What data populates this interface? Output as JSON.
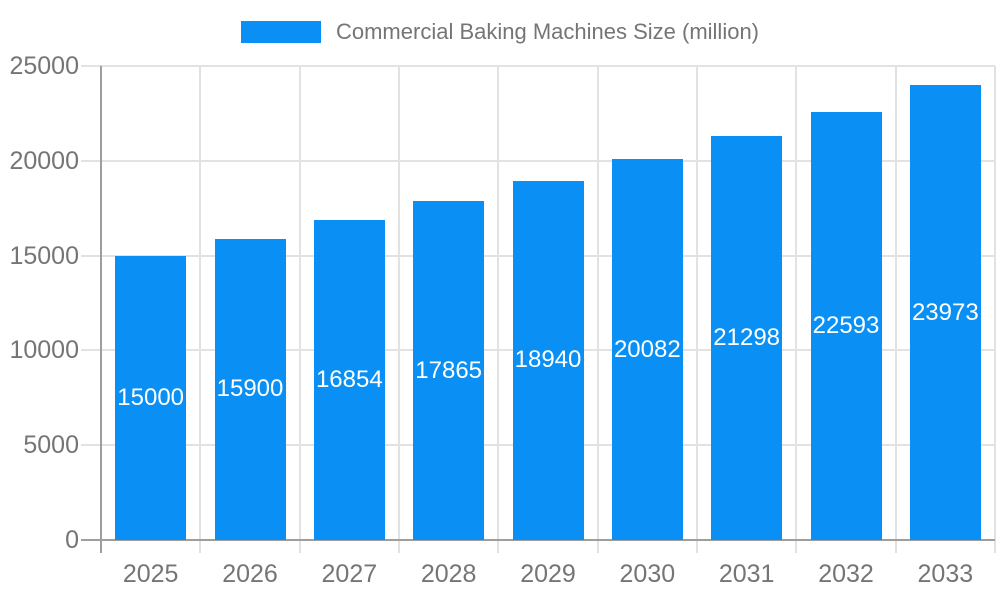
{
  "legend": {
    "label": "Commercial Baking Machines Size (million)"
  },
  "chart_data": {
    "type": "bar",
    "title": "Commercial Baking Machines Size (million)",
    "categories": [
      "2025",
      "2026",
      "2027",
      "2028",
      "2029",
      "2030",
      "2031",
      "2032",
      "2033"
    ],
    "series": [
      {
        "name": "Commercial Baking Machines Size (million)",
        "values": [
          15000,
          15900,
          16854,
          17865,
          18940,
          20082,
          21298,
          22593,
          23973
        ]
      }
    ],
    "value_labels": [
      15000,
      15900,
      16854,
      17865,
      18940,
      20082,
      21298,
      22593,
      23973
    ],
    "value_label_position": "inside-middle",
    "xlabel": "",
    "ylabel": "",
    "ylim": [
      0,
      25000
    ],
    "yticks": [
      0,
      5000,
      10000,
      15000,
      20000,
      25000
    ],
    "grid": "both",
    "legend_position": "top-center",
    "colors": {
      "bar": "#0A90F4",
      "value_label_text": "#ffffff",
      "axis_text": "#757575",
      "legend_text": "#757575",
      "gridline": "#e2e2e2",
      "axis_line": "#9e9e9e",
      "background": "#ffffff"
    }
  }
}
